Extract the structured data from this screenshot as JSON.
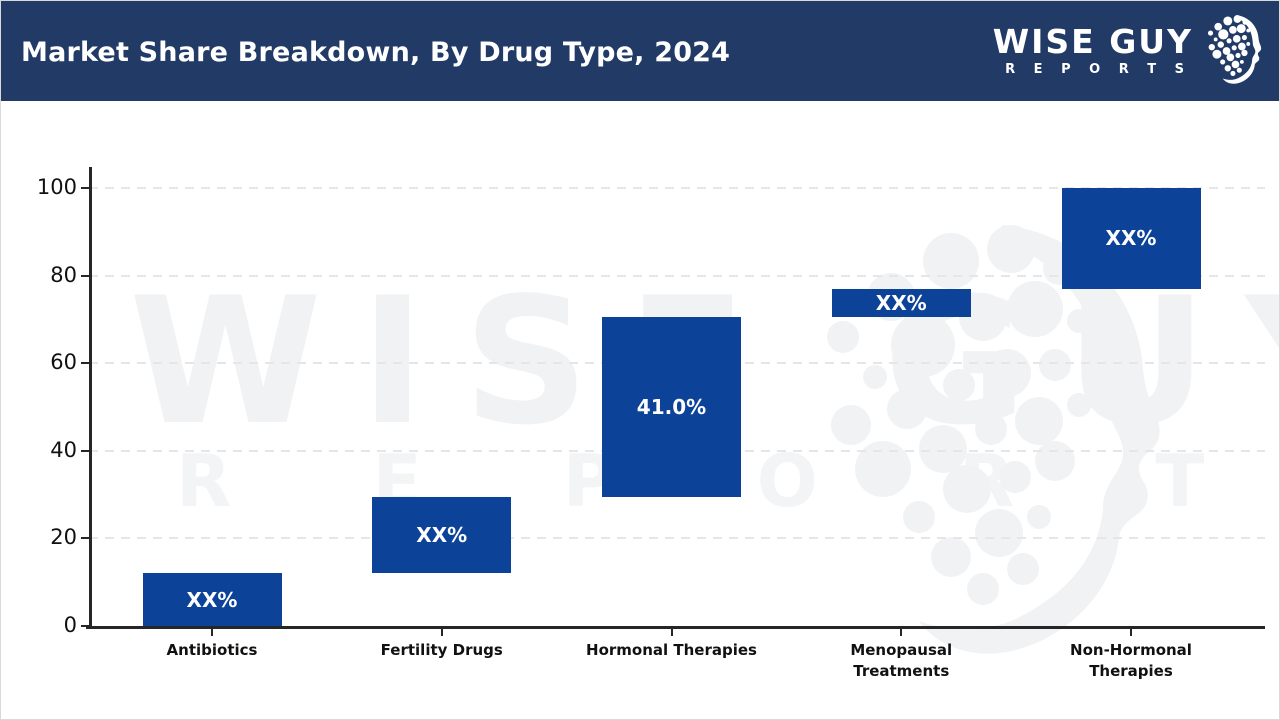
{
  "header": {
    "title": "Market Share Breakdown, By Drug Type, 2024",
    "background_color": "#213A66",
    "logo": {
      "line1": "WISE GUY",
      "line2": "R E P O R T S"
    }
  },
  "watermark": {
    "line1": "WISE GUY",
    "line2": "R E P O R T S"
  },
  "chart_data": {
    "type": "bar",
    "subtype": "waterfall",
    "title": "Market Share Breakdown, By Drug Type, 2024",
    "categories": [
      "Antibiotics",
      "Fertility Drugs",
      "Hormonal Therapies",
      "Menopausal Treatments",
      "Non-Hormonal Therapies"
    ],
    "category_label_lines": [
      [
        "Antibiotics"
      ],
      [
        "Fertility Drugs"
      ],
      [
        "Hormonal Therapies"
      ],
      [
        "Menopausal",
        "Treatments"
      ],
      [
        "Non-Hormonal",
        "Therapies"
      ]
    ],
    "segments": [
      {
        "category": "Antibiotics",
        "start": 0,
        "end": 12,
        "label": "XX%"
      },
      {
        "category": "Fertility Drugs",
        "start": 12,
        "end": 29.5,
        "label": "XX%"
      },
      {
        "category": "Hormonal Therapies",
        "start": 29.5,
        "end": 70.5,
        "label": "41.0%"
      },
      {
        "category": "Menopausal Treatments",
        "start": 70.5,
        "end": 77,
        "label": "XX%"
      },
      {
        "category": "Non-Hormonal Therapies",
        "start": 77,
        "end": 100,
        "label": "XX%"
      }
    ],
    "yticks": [
      0,
      20,
      40,
      60,
      80,
      100
    ],
    "ylim": [
      0,
      105
    ],
    "xlabel": "",
    "ylabel": "",
    "grid": "dashed horizontal, 20-unit steps",
    "legend": "none",
    "bar_color": "#0C4399",
    "bar_label_color": "#FFFFFF"
  }
}
